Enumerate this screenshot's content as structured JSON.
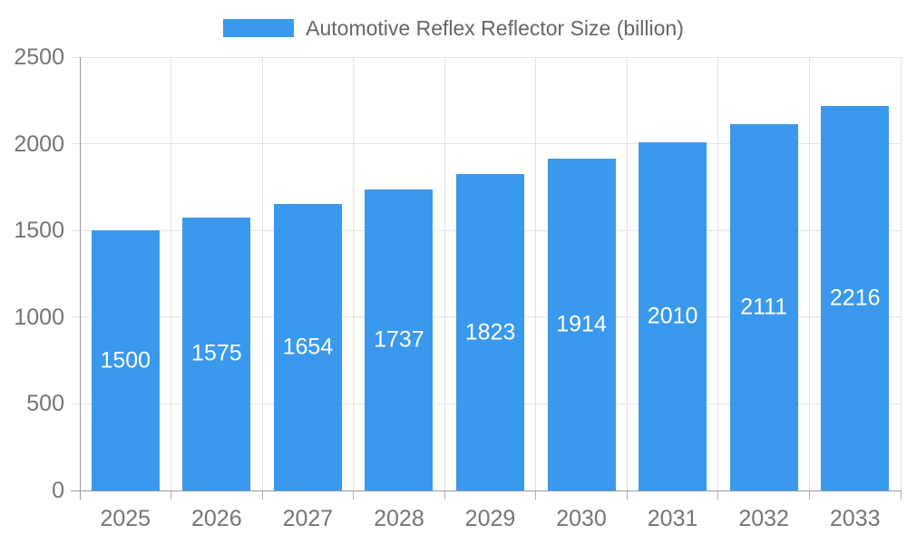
{
  "chart_data": {
    "type": "bar",
    "title": "Automotive Reflex Reflector Size (billion)",
    "categories": [
      "2025",
      "2026",
      "2027",
      "2028",
      "2029",
      "2030",
      "2031",
      "2032",
      "2033"
    ],
    "values": [
      1500,
      1575,
      1654,
      1737,
      1823,
      1914,
      2010,
      2111,
      2216
    ],
    "xlabel": "",
    "ylabel": "",
    "ylim": [
      0,
      2500
    ],
    "yticks": [
      0,
      500,
      1000,
      1500,
      2000,
      2500
    ],
    "grid": true,
    "legend_position": "top-center",
    "value_label_position": "inside-center",
    "colors": {
      "bar": "#3A99EC",
      "grid": "#E3E3E3",
      "axis": "#9A9A9A",
      "tick_mark": "#ADADAD",
      "tick_label": "#757575",
      "legend_text": "#666666",
      "value_label": "#FFFFFF",
      "background": "#FFFFFF"
    }
  }
}
